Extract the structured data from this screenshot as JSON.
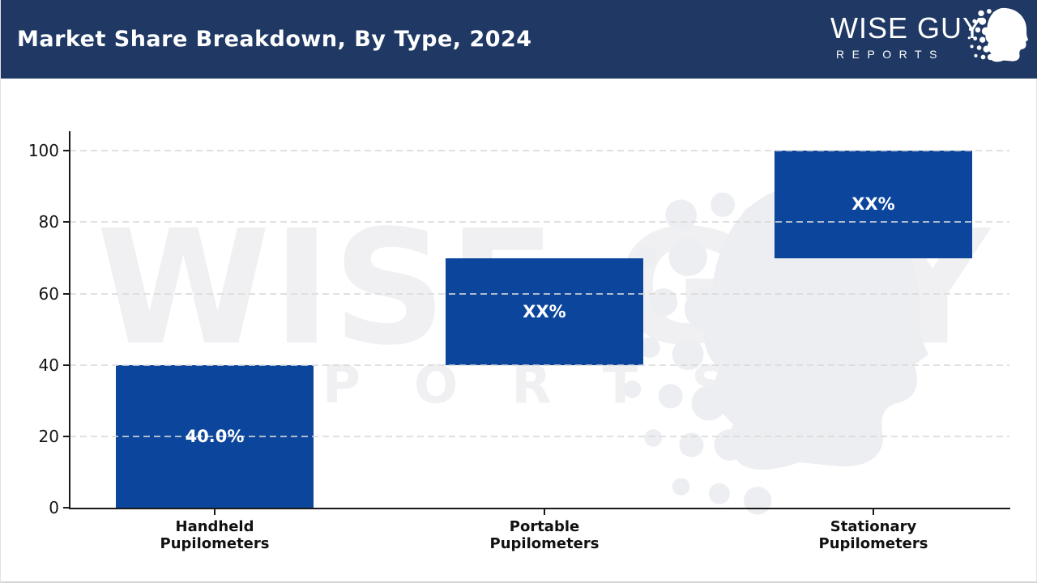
{
  "header": {
    "title": "Market Share Breakdown, By Type, 2024",
    "logo": {
      "line1": "WISE GUY",
      "line2": "REPORTS"
    }
  },
  "watermark": {
    "line1": "WISE GUY",
    "line2": "REPORTS"
  },
  "colors": {
    "header_bg": "#1f3864",
    "bar": "#0b459c",
    "grid": "#d9d9d9",
    "axis": "#1a1a1a",
    "watermark": "#f0f0f2",
    "bar_label": "#ffffff"
  },
  "chart_data": {
    "type": "bar",
    "subtype": "stepped-range-bars",
    "title": "Market Share Breakdown, By Type, 2024",
    "categories": [
      "Handheld\nPupilometers",
      "Portable\nPupilometers",
      "Stationary\nPupilometers"
    ],
    "series": [
      {
        "name": "Handheld Pupilometers",
        "range": [
          0,
          40
        ],
        "label": "40.0%"
      },
      {
        "name": "Portable Pupilometers",
        "range": [
          40,
          70
        ],
        "label": "XX%"
      },
      {
        "name": "Stationary Pupilometers",
        "range": [
          70,
          100
        ],
        "label": "XX%"
      }
    ],
    "ylim": [
      0,
      100
    ],
    "yticks": [
      0,
      20,
      40,
      60,
      80,
      100
    ],
    "xlabel": "",
    "ylabel": "",
    "grid": "horizontal-dashed-over-bars",
    "legend": "none"
  }
}
